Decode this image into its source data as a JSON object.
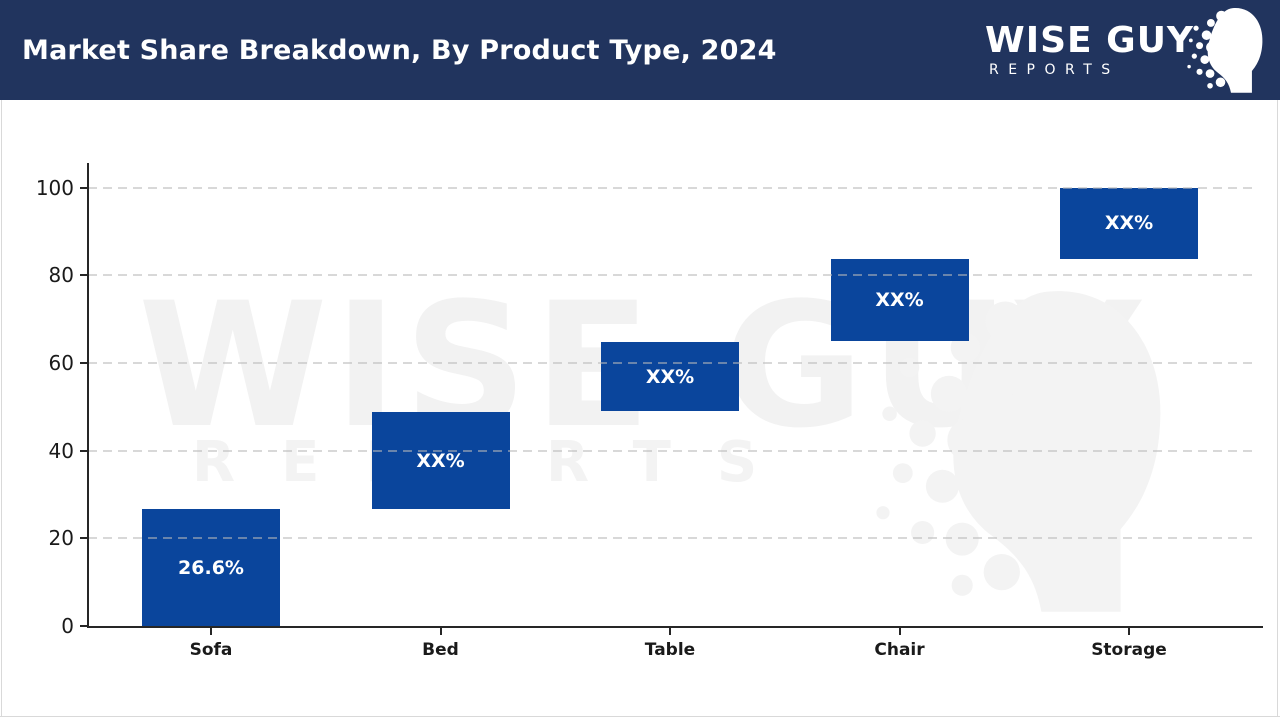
{
  "header": {
    "title": "Market Share Breakdown, By Product Type, 2024",
    "bg_color": "#21345E",
    "logo": {
      "line1": "WISE GUY",
      "line2": "REPORTS"
    }
  },
  "watermark": {
    "line1": "WISE GUY",
    "line2": "REPORTS"
  },
  "chart_data": {
    "type": "bar",
    "subtype": "waterfall",
    "title": "Market Share Breakdown, By Product Type, 2024",
    "categories": [
      "Sofa",
      "Bed",
      "Table",
      "Chair",
      "Storage"
    ],
    "series": [
      {
        "name": "Market Share (%)",
        "segments": [
          [
            0,
            26.6
          ],
          [
            26.6,
            48.8
          ],
          [
            49.0,
            64.7
          ],
          [
            65.0,
            83.6
          ],
          [
            83.8,
            100.0
          ]
        ]
      }
    ],
    "bar_labels": [
      "26.6%",
      "XX%",
      "XX%",
      "XX%",
      "XX%"
    ],
    "xlabel": "",
    "ylabel": "",
    "yticks": [
      0,
      20,
      40,
      60,
      80,
      100
    ],
    "ylim": [
      0,
      105
    ],
    "grid": "horizontal-dashed",
    "legend": "none",
    "bar_color": "#0A459C",
    "bar_label_color": "#FFFFFF",
    "axis_color": "#262626",
    "gridline_color": "#DDDDDD"
  }
}
